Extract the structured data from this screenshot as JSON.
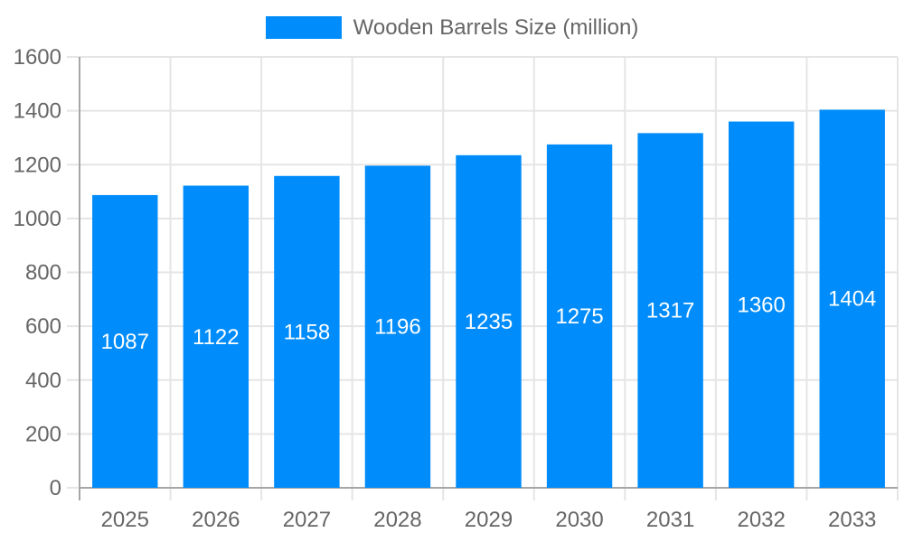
{
  "chart_data": {
    "type": "bar",
    "title": "",
    "legend": {
      "label": "Wooden Barrels Size (million)",
      "position": "top"
    },
    "categories": [
      "2025",
      "2026",
      "2027",
      "2028",
      "2029",
      "2030",
      "2031",
      "2032",
      "2033"
    ],
    "series": [
      {
        "name": "Wooden Barrels Size (million)",
        "values": [
          1087,
          1122,
          1158,
          1196,
          1235,
          1275,
          1317,
          1360,
          1404
        ]
      }
    ],
    "xlabel": "",
    "ylabel": "",
    "ylim": [
      0,
      1600
    ],
    "ytick_step": 200,
    "grid": true,
    "bar_value_labels": "inside-center",
    "colors": {
      "bar": "#008CFA",
      "grid_line": "#e5e5e5",
      "axis_line": "#a6a6a6",
      "tick_text": "#666666",
      "bar_label_text": "#ffffff",
      "background": "#ffffff"
    }
  }
}
